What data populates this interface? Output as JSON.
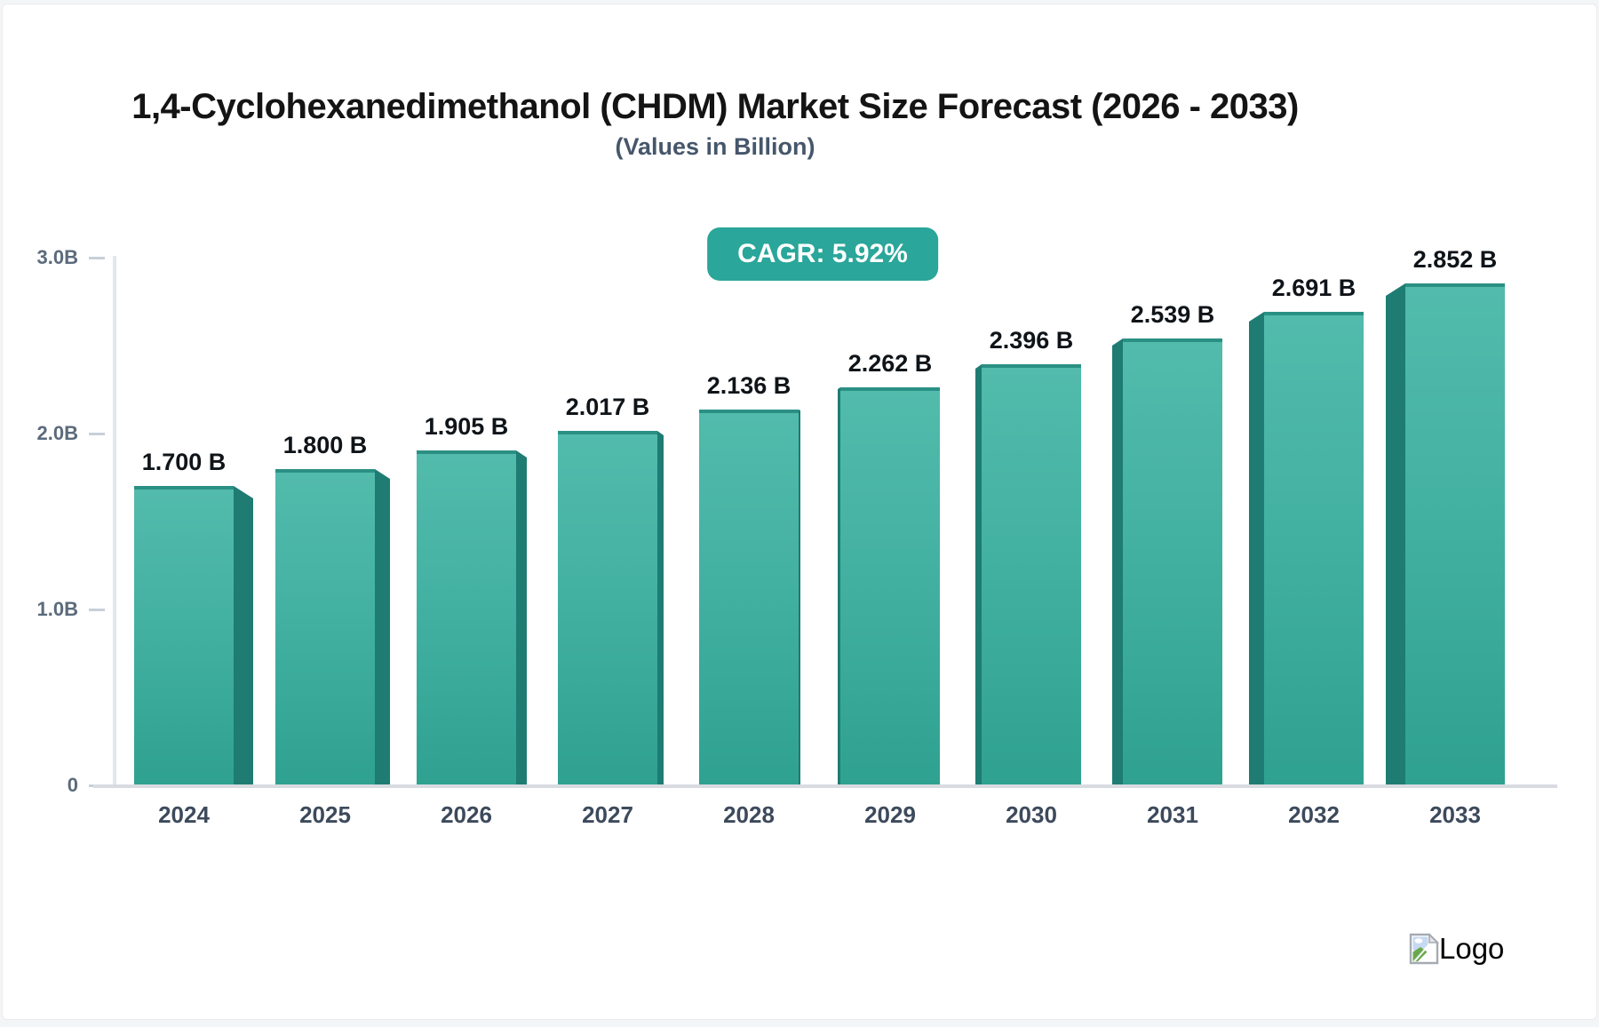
{
  "title": "1,4-Cyclohexanedimethanol (CHDM) Market Size Forecast (2026 - 2033)",
  "subtitle": "(Values in Billion)",
  "badge": {
    "label": "CAGR: 5.92%"
  },
  "logo": {
    "alt_text": "Logo"
  },
  "colors": {
    "bar_top": "#52bbac",
    "bar_bottom": "#2fa190",
    "bar_side": "#1e7c73",
    "badge_bg": "#2aa69a",
    "axis_line": "#e3e6ea",
    "baseline": "#d8dce1",
    "tick_label": "#5b6b7c",
    "x_label": "#3d4a5c",
    "value_label": "#0f1419"
  },
  "chart_data": {
    "type": "bar",
    "title": "1,4-Cyclohexanedimethanol (CHDM) Market Size Forecast (2026 - 2033)",
    "subtitle": "(Values in Billion)",
    "annotation": "CAGR: 5.92%",
    "categories": [
      "2024",
      "2025",
      "2026",
      "2027",
      "2028",
      "2029",
      "2030",
      "2031",
      "2032",
      "2033"
    ],
    "values": [
      1.7,
      1.8,
      1.905,
      2.017,
      2.136,
      2.262,
      2.396,
      2.539,
      2.691,
      2.852
    ],
    "value_labels": [
      "1.700 B",
      "1.800 B",
      "1.905 B",
      "2.017 B",
      "2.136 B",
      "2.262 B",
      "2.396 B",
      "2.539 B",
      "2.691 B",
      "2.852 B"
    ],
    "xlabel": "",
    "ylabel": "",
    "ylim": [
      0,
      3.0
    ],
    "yticks": [
      {
        "value": 3.0,
        "label": "3.0B"
      },
      {
        "value": 2.0,
        "label": "2.0B"
      },
      {
        "value": 1.0,
        "label": "1.0B"
      },
      {
        "value": 0.0,
        "label": "0"
      }
    ],
    "grid": false,
    "legend": false,
    "unit": "Billion"
  }
}
